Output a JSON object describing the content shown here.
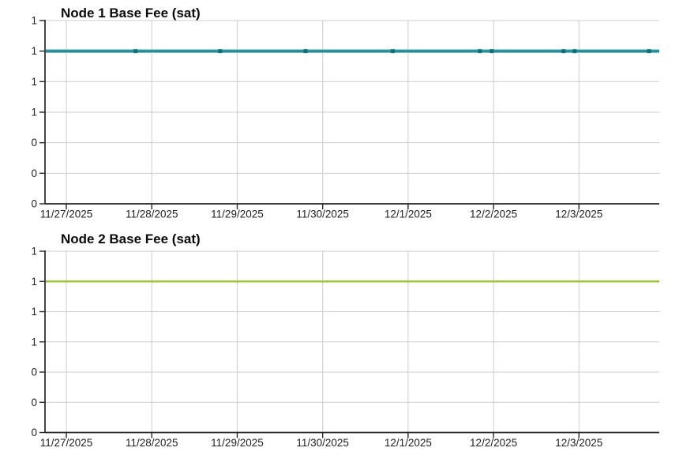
{
  "window": {
    "background": "#ffffff"
  },
  "chart_data": [
    {
      "type": "line",
      "title": "Node 1 Base Fee (sat)",
      "xlabel": "",
      "ylabel": "",
      "x_tick_labels": [
        "11/27/2025",
        "11/28/2025",
        "11/29/2025",
        "11/30/2025",
        "12/1/2025",
        "12/2/2025",
        "12/3/2025"
      ],
      "x_tick_days": [
        0,
        1,
        2,
        3,
        4,
        5,
        6
      ],
      "xlim_days": [
        -0.25,
        6.94
      ],
      "y_tick_labels": [
        "1",
        "1",
        "1",
        "1",
        "0",
        "0",
        "0"
      ],
      "y_tick_values": [
        1.2,
        1.0,
        0.8,
        0.6,
        0.4,
        0.2,
        0.0
      ],
      "ylim": [
        0,
        1.2
      ],
      "grid": true,
      "legend": "none",
      "series": [
        {
          "name": "Node 1 Base Fee (sat)",
          "constant_value": 1,
          "point_times_days": [
            0.81,
            1.8,
            2.8,
            3.82,
            4.84,
            4.98,
            5.82,
            5.95,
            6.82
          ],
          "point_values": [
            1,
            1,
            1,
            1,
            1,
            1,
            1,
            1,
            1
          ],
          "color": "#12808A",
          "halo_color": "#6FBCC0",
          "marker_color": "#0C727B",
          "show_markers": true
        }
      ],
      "colors": {
        "grid": "#CDCDCD",
        "axis": "#262626",
        "tick_text": "#1F1F1F",
        "title_text": "#0A0A0A"
      }
    },
    {
      "type": "line",
      "title": "Node 2 Base Fee (sat)",
      "xlabel": "",
      "ylabel": "",
      "x_tick_labels": [
        "11/27/2025",
        "11/28/2025",
        "11/29/2025",
        "11/30/2025",
        "12/1/2025",
        "12/2/2025",
        "12/3/2025"
      ],
      "x_tick_days": [
        0,
        1,
        2,
        3,
        4,
        5,
        6
      ],
      "xlim_days": [
        -0.25,
        6.94
      ],
      "y_tick_labels": [
        "1",
        "1",
        "1",
        "1",
        "0",
        "0",
        "0"
      ],
      "y_tick_values": [
        1.2,
        1.0,
        0.8,
        0.6,
        0.4,
        0.2,
        0.0
      ],
      "ylim": [
        0,
        1.2
      ],
      "grid": true,
      "legend": "none",
      "series": [
        {
          "name": "Node 2 Base Fee (sat)",
          "constant_value": 1,
          "point_times_days": [
            0,
            1,
            2,
            3,
            4,
            5,
            6
          ],
          "point_values": [
            1,
            1,
            1,
            1,
            1,
            1,
            1
          ],
          "color": "#9CC838",
          "halo_color": null,
          "marker_color": null,
          "show_markers": false
        }
      ],
      "colors": {
        "grid": "#CDCDCD",
        "axis": "#262626",
        "tick_text": "#1F1F1F",
        "title_text": "#0A0A0A"
      }
    }
  ]
}
